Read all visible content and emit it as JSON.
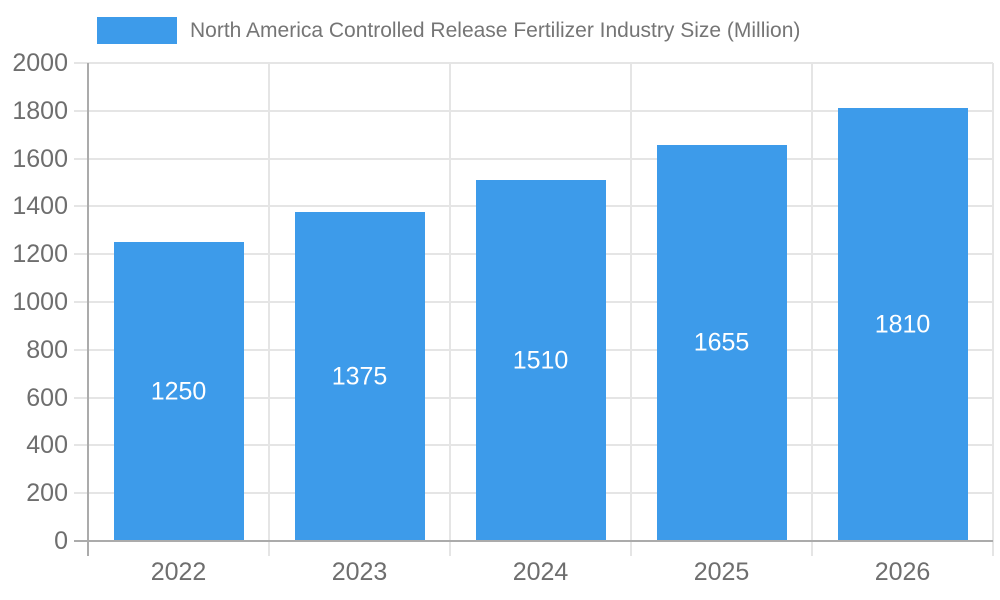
{
  "legend": {
    "label": "North America Controlled Release Fertilizer Industry Size (Million)"
  },
  "chart_data": {
    "type": "bar",
    "title": "North America Controlled Release Fertilizer Industry Size (Million)",
    "categories": [
      "2022",
      "2023",
      "2024",
      "2025",
      "2026"
    ],
    "values": [
      1250,
      1375,
      1510,
      1655,
      1810
    ],
    "bar_labels": [
      "1250",
      "1375",
      "1510",
      "1655",
      "1810"
    ],
    "xlabel": "",
    "ylabel": "",
    "ylim": [
      0,
      2000
    ],
    "ytick_step": 200,
    "ytick_labels": [
      "0",
      "200",
      "400",
      "600",
      "800",
      "1000",
      "1200",
      "1400",
      "1600",
      "1800",
      "2000"
    ],
    "grid": true,
    "legend_position": "top-left"
  },
  "colors": {
    "bar": "#3D9BEA",
    "bar_value_label": "#ffffff",
    "grid_line": "#e5e5e5",
    "axis_line": "#ababab",
    "axis_label": "#6e6e6e",
    "legend_text": "#757575",
    "background": "#ffffff"
  }
}
